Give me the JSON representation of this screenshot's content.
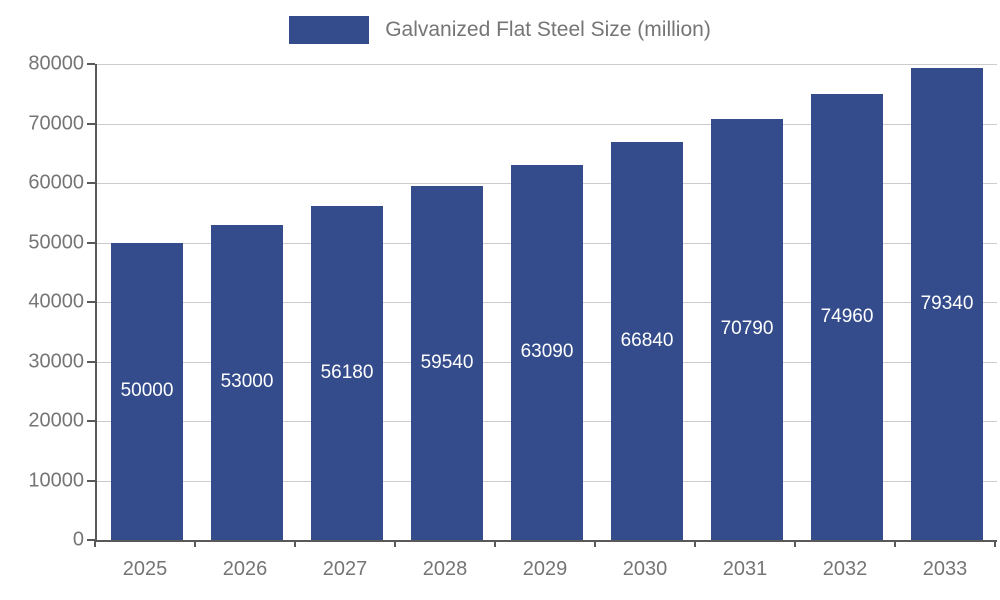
{
  "legend": {
    "label": "Galvanized Flat Steel Size (million)"
  },
  "colors": {
    "bar": "#344C8C",
    "axis_text": "#757575",
    "grid": "#cccccc",
    "axis_line": "#595959",
    "value_label": "#ffffff",
    "background": "#ffffff"
  },
  "chart_data": {
    "type": "bar",
    "categories": [
      "2025",
      "2026",
      "2027",
      "2028",
      "2029",
      "2030",
      "2031",
      "2032",
      "2033"
    ],
    "values": [
      50000,
      53000,
      56180,
      59540,
      63090,
      66840,
      70790,
      74960,
      79340
    ],
    "title": "",
    "xlabel": "",
    "ylabel": "",
    "ylim": [
      0,
      80000
    ],
    "ytick_step": 10000,
    "ytick_labels": [
      "0",
      "10000",
      "20000",
      "30000",
      "40000",
      "50000",
      "60000",
      "70000",
      "80000"
    ],
    "grid": true,
    "legend_entries": [
      "Galvanized Flat Steel Size (million)"
    ],
    "legend_position": "top-center",
    "value_labels": "inside-middle"
  }
}
